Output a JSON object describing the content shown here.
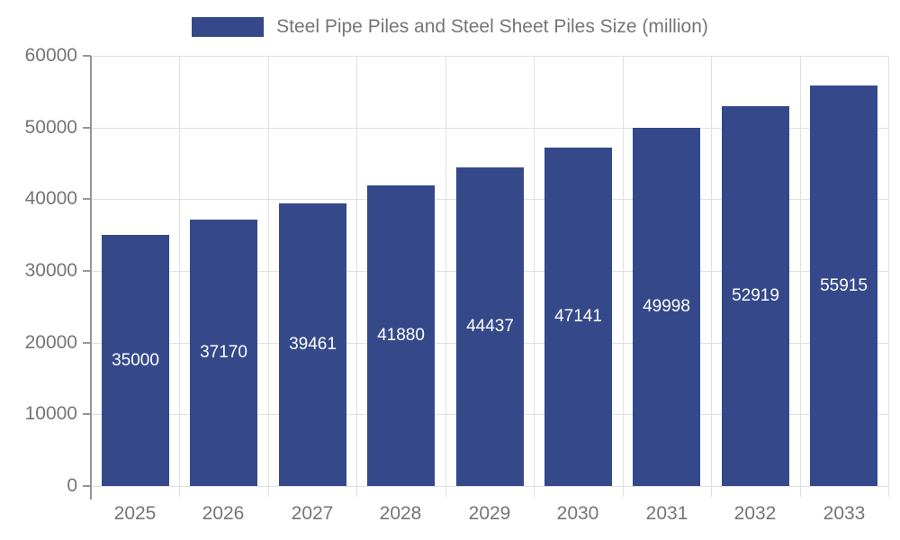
{
  "chart_data": {
    "type": "bar",
    "title": "Steel Pipe Piles and Steel Sheet Piles Size (million)",
    "legend": [
      "Steel Pipe Piles and Steel Sheet Piles Size (million)"
    ],
    "legend_position": "top",
    "categories": [
      "2025",
      "2026",
      "2027",
      "2028",
      "2029",
      "2030",
      "2031",
      "2032",
      "2033"
    ],
    "values": [
      35000,
      37170,
      39461,
      41880,
      44437,
      47141,
      49998,
      52919,
      55915
    ],
    "value_labels": [
      "35000",
      "37170",
      "39461",
      "41880",
      "44437",
      "47141",
      "49998",
      "52919",
      "55915"
    ],
    "xlabel": "",
    "ylabel": "",
    "ylim": [
      0,
      60000
    ],
    "y_ticks": [
      0,
      10000,
      20000,
      30000,
      40000,
      50000,
      60000
    ],
    "y_tick_labels": [
      "0",
      "10000",
      "20000",
      "30000",
      "40000",
      "50000",
      "60000"
    ],
    "grid": "on",
    "colors": {
      "bar": "#35498a",
      "bar_value_text": "#ffffff",
      "axis_text": "#757575",
      "legend_text": "#757575",
      "gridline": "#e0e0e0",
      "axis_line": "#969696",
      "background": "#ffffff"
    }
  }
}
